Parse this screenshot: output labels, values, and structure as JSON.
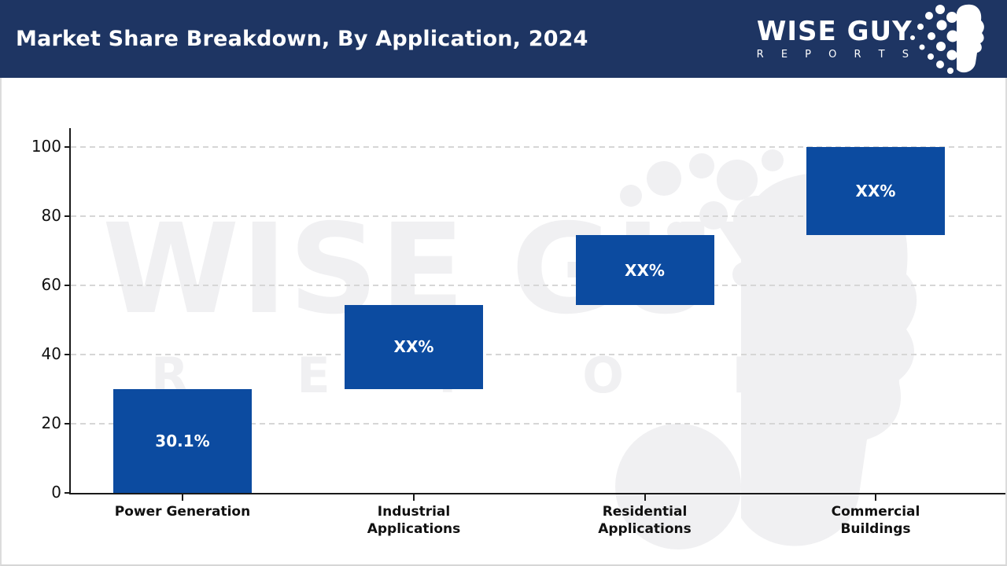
{
  "header": {
    "title": "Market Share Breakdown, By Application, 2024",
    "bg_color": "#1e3563",
    "logo": {
      "line1": "WISE GUY",
      "line2": "R E P O R T S"
    }
  },
  "watermark": {
    "line1": "WISE GUY",
    "line2": "R E P O R T S",
    "color": "#f0f0f2"
  },
  "chart_data": {
    "type": "bar",
    "subtype": "waterfall",
    "title": "Market Share Breakdown, By Application, 2024",
    "xlabel": "",
    "ylabel": "",
    "categories": [
      "Power Generation",
      "Industrial\nApplications",
      "Residential\nApplications",
      "Commercial\nBuildings"
    ],
    "segments": [
      {
        "category": "Power Generation",
        "start": 0,
        "end": 30.1,
        "label": "30.1%"
      },
      {
        "category": "Industrial Applications",
        "start": 30.1,
        "end": 54.3,
        "label": "XX%"
      },
      {
        "category": "Residential Applications",
        "start": 54.3,
        "end": 74.5,
        "label": "XX%"
      },
      {
        "category": "Commercial Buildings",
        "start": 74.5,
        "end": 100,
        "label": "XX%"
      }
    ],
    "yticks": [
      0,
      20,
      40,
      60,
      80,
      100
    ],
    "ylim": [
      0,
      105.5
    ],
    "grid": "horizontal-dashed",
    "legend": "none",
    "bar_color": "#0c4ba0",
    "bar_label_color": "#ffffff",
    "grid_color": "#d6d6d6",
    "axis_color": "#1a1a1a"
  }
}
